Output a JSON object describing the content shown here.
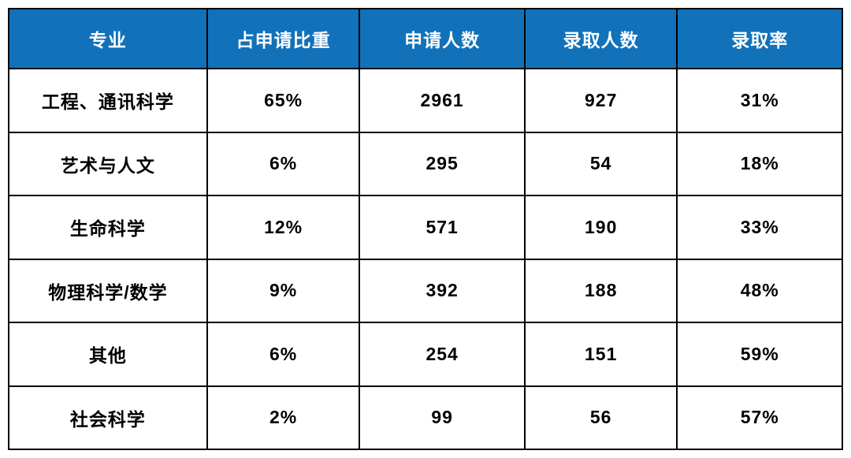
{
  "chart_data": {
    "type": "table",
    "columns": [
      "专业",
      "占申请比重",
      "申请人数",
      "录取人数",
      "录取率"
    ],
    "rows": [
      [
        "工程、通讯科学",
        "65%",
        "2961",
        "927",
        "31%"
      ],
      [
        "艺术与人文",
        "6%",
        "295",
        "54",
        "18%"
      ],
      [
        "生命科学",
        "12%",
        "571",
        "190",
        "33%"
      ],
      [
        "物理科学/数学",
        "9%",
        "392",
        "188",
        "48%"
      ],
      [
        "其他",
        "6%",
        "254",
        "151",
        "59%"
      ],
      [
        "社会科学",
        "2%",
        "99",
        "56",
        "57%"
      ]
    ]
  },
  "colors": {
    "header_bg": "#1272B9",
    "header_text": "#FFFFFF",
    "body_bg": "#FFFFFF",
    "body_text": "#000000",
    "grid_border": "#000000"
  }
}
